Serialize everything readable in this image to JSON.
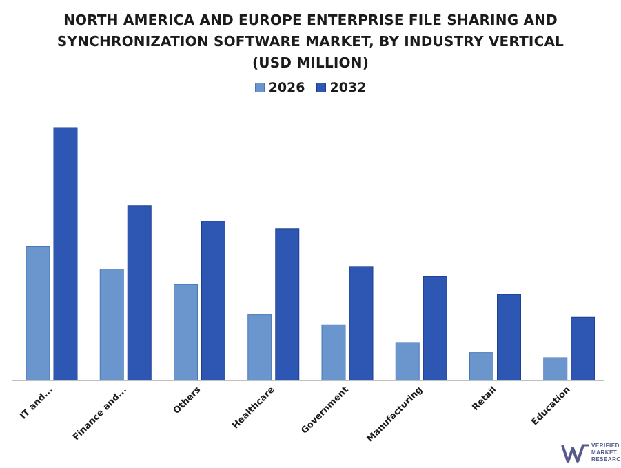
{
  "chart_data": {
    "type": "bar",
    "title_lines": [
      "NORTH AMERICA AND EUROPE ENTERPRISE FILE SHARING AND",
      "SYNCHRONIZATION SOFTWARE MARKET, BY INDUSTRY VERTICAL",
      "(USD MILLION)"
    ],
    "categories": [
      "IT and...",
      "Finance and...",
      "Others",
      "Healthcare",
      "Government",
      "Manufacturing",
      "Retail",
      "Education"
    ],
    "series": [
      {
        "name": "2026",
        "values": [
          5.3,
          4.4,
          3.8,
          2.6,
          2.2,
          1.5,
          1.1,
          0.9
        ],
        "color": "#6a95cd",
        "stroke": "#4a78bb"
      },
      {
        "name": "2032",
        "values": [
          10.0,
          6.9,
          6.3,
          6.0,
          4.5,
          4.1,
          3.4,
          2.5
        ],
        "color": "#2e56b3",
        "stroke": "#1d3f92"
      }
    ],
    "ylim": [
      0,
      10
    ],
    "y_axis_shown": false,
    "grid": false,
    "legend_position": "top-center"
  },
  "logo": {
    "lines": [
      "VERIFIED",
      "MARKET",
      "RESEARCH"
    ],
    "color": "#555a8a"
  }
}
